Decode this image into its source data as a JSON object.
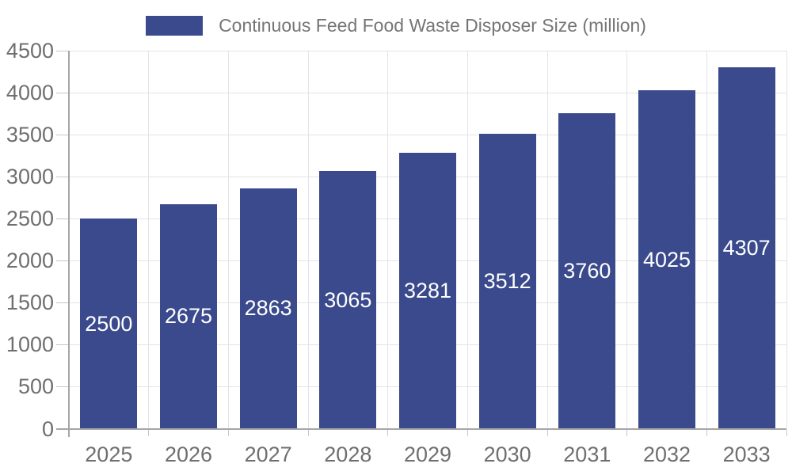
{
  "chart_data": {
    "type": "bar",
    "title": "Continuous Feed Food Waste Disposer Size (million)",
    "categories": [
      "2025",
      "2026",
      "2027",
      "2028",
      "2029",
      "2030",
      "2031",
      "2032",
      "2033"
    ],
    "values": [
      2500,
      2675,
      2863,
      3065,
      3281,
      3512,
      3760,
      4025,
      4307
    ],
    "xlabel": "",
    "ylabel": "",
    "ylim": [
      0,
      4500
    ],
    "yticks": [
      0,
      500,
      1000,
      1500,
      2000,
      2500,
      3000,
      3500,
      4000,
      4500
    ],
    "grid": true,
    "legend_position": "top",
    "value_labels_shown": true
  },
  "colors": {
    "bar": "#3a4a8c",
    "grid_line": "#e4e4e4",
    "plot_border": "#e4e4e4",
    "axis_line": "#a6a6a6",
    "tick_line": "#c6c6cc",
    "axis_text": "#6f6f6f",
    "legend_text": "#757575",
    "bar_value_text": "#ffffff",
    "background": "#ffffff"
  }
}
